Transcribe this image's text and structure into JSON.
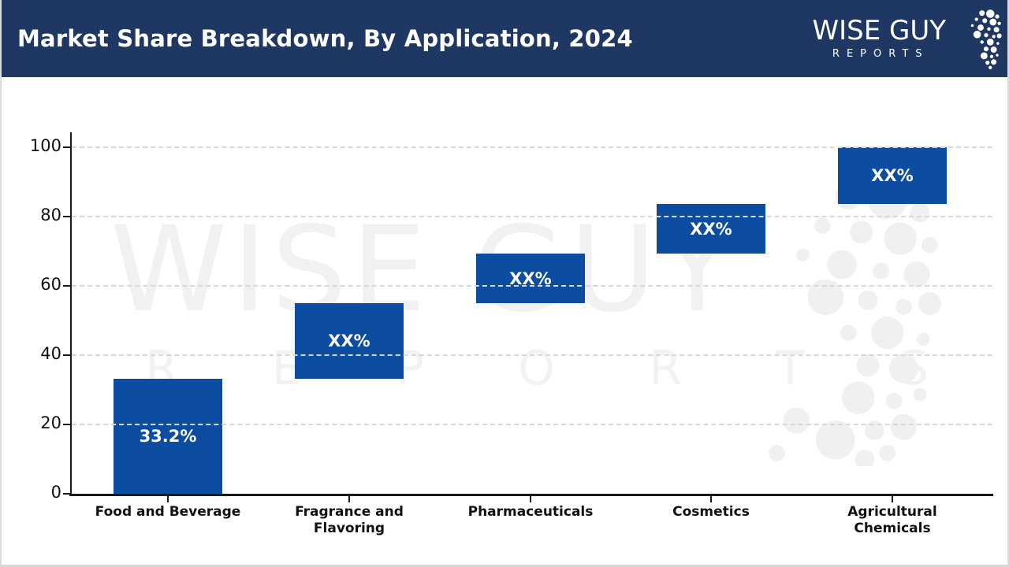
{
  "header": {
    "title": "Market Share Breakdown, By Application, 2024",
    "bg_color": "#1f3863",
    "logo": {
      "wordmark": "WISE GUY",
      "subtext": "REPORTS"
    }
  },
  "watermark": {
    "wordmark": "WISE GUY",
    "subtext": "R E P O R T S"
  },
  "chart_data": {
    "type": "bar",
    "subtype": "waterfall",
    "title": "Market Share Breakdown, By Application, 2024",
    "categories": [
      "Food and Beverage",
      "Fragrance and\nFlavoring",
      "Pharmaceuticals",
      "Cosmetics",
      "Agricultural\nChemicals"
    ],
    "segments": [
      {
        "category": "Food and Beverage",
        "start": 0,
        "end": 33.2,
        "label": "33.2%"
      },
      {
        "category": "Fragrance and Flavoring",
        "start": 33.2,
        "end": 55.0,
        "label": "XX%"
      },
      {
        "category": "Pharmaceuticals",
        "start": 55.0,
        "end": 69.3,
        "label": "XX%"
      },
      {
        "category": "Cosmetics",
        "start": 69.3,
        "end": 83.6,
        "label": "XX%"
      },
      {
        "category": "Agricultural Chemicals",
        "start": 83.6,
        "end": 100,
        "label": "XX%"
      }
    ],
    "xlabel": "",
    "ylabel": "",
    "ylim": [
      0,
      100
    ],
    "yticks": [
      0,
      20,
      40,
      60,
      80,
      100
    ],
    "grid": "horizontal-dashed",
    "grid_over_bars": true,
    "legend": "none",
    "bar_color": "#0d4da1",
    "value_label_color": "#ffffff",
    "axis_color": "#1a1a1a"
  }
}
